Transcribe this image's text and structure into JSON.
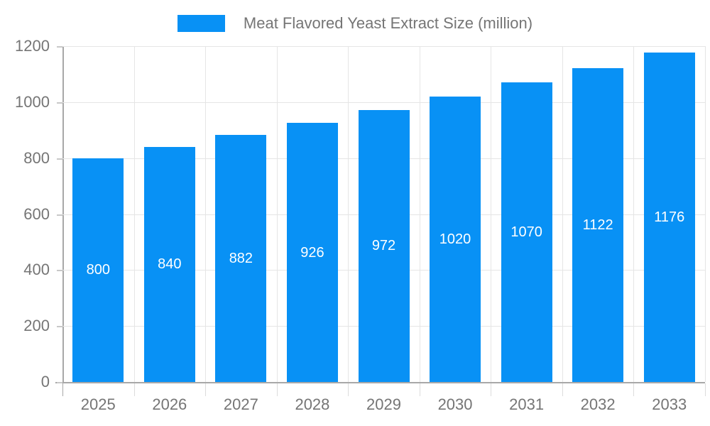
{
  "legend": {
    "label": "Meat Flavored Yeast Extract Size (million)"
  },
  "chart_data": {
    "type": "bar",
    "title": "Meat Flavored Yeast Extract Size (million)",
    "categories": [
      "2025",
      "2026",
      "2027",
      "2028",
      "2029",
      "2030",
      "2031",
      "2032",
      "2033"
    ],
    "series": [
      {
        "name": "Meat Flavored Yeast Extract Size (million)",
        "values": [
          800,
          840,
          882,
          926,
          972,
          1020,
          1070,
          1122,
          1176
        ]
      }
    ],
    "value_labels": [
      "800",
      "840",
      "882",
      "926",
      "972",
      "1020",
      "1070",
      "1122",
      "1176"
    ],
    "xlabel": "",
    "ylabel": "",
    "ylim": [
      0,
      1200
    ],
    "yticks": [
      0,
      200,
      400,
      600,
      800,
      1000,
      1200
    ],
    "grid": true,
    "legend_position": "top"
  },
  "colors": {
    "bar": "#0891f5",
    "value_label": "#ffffff",
    "axis_text": "#757575",
    "gridline": "#e5e5e5",
    "axis_line": "#a8a8a8",
    "background": "#ffffff"
  }
}
